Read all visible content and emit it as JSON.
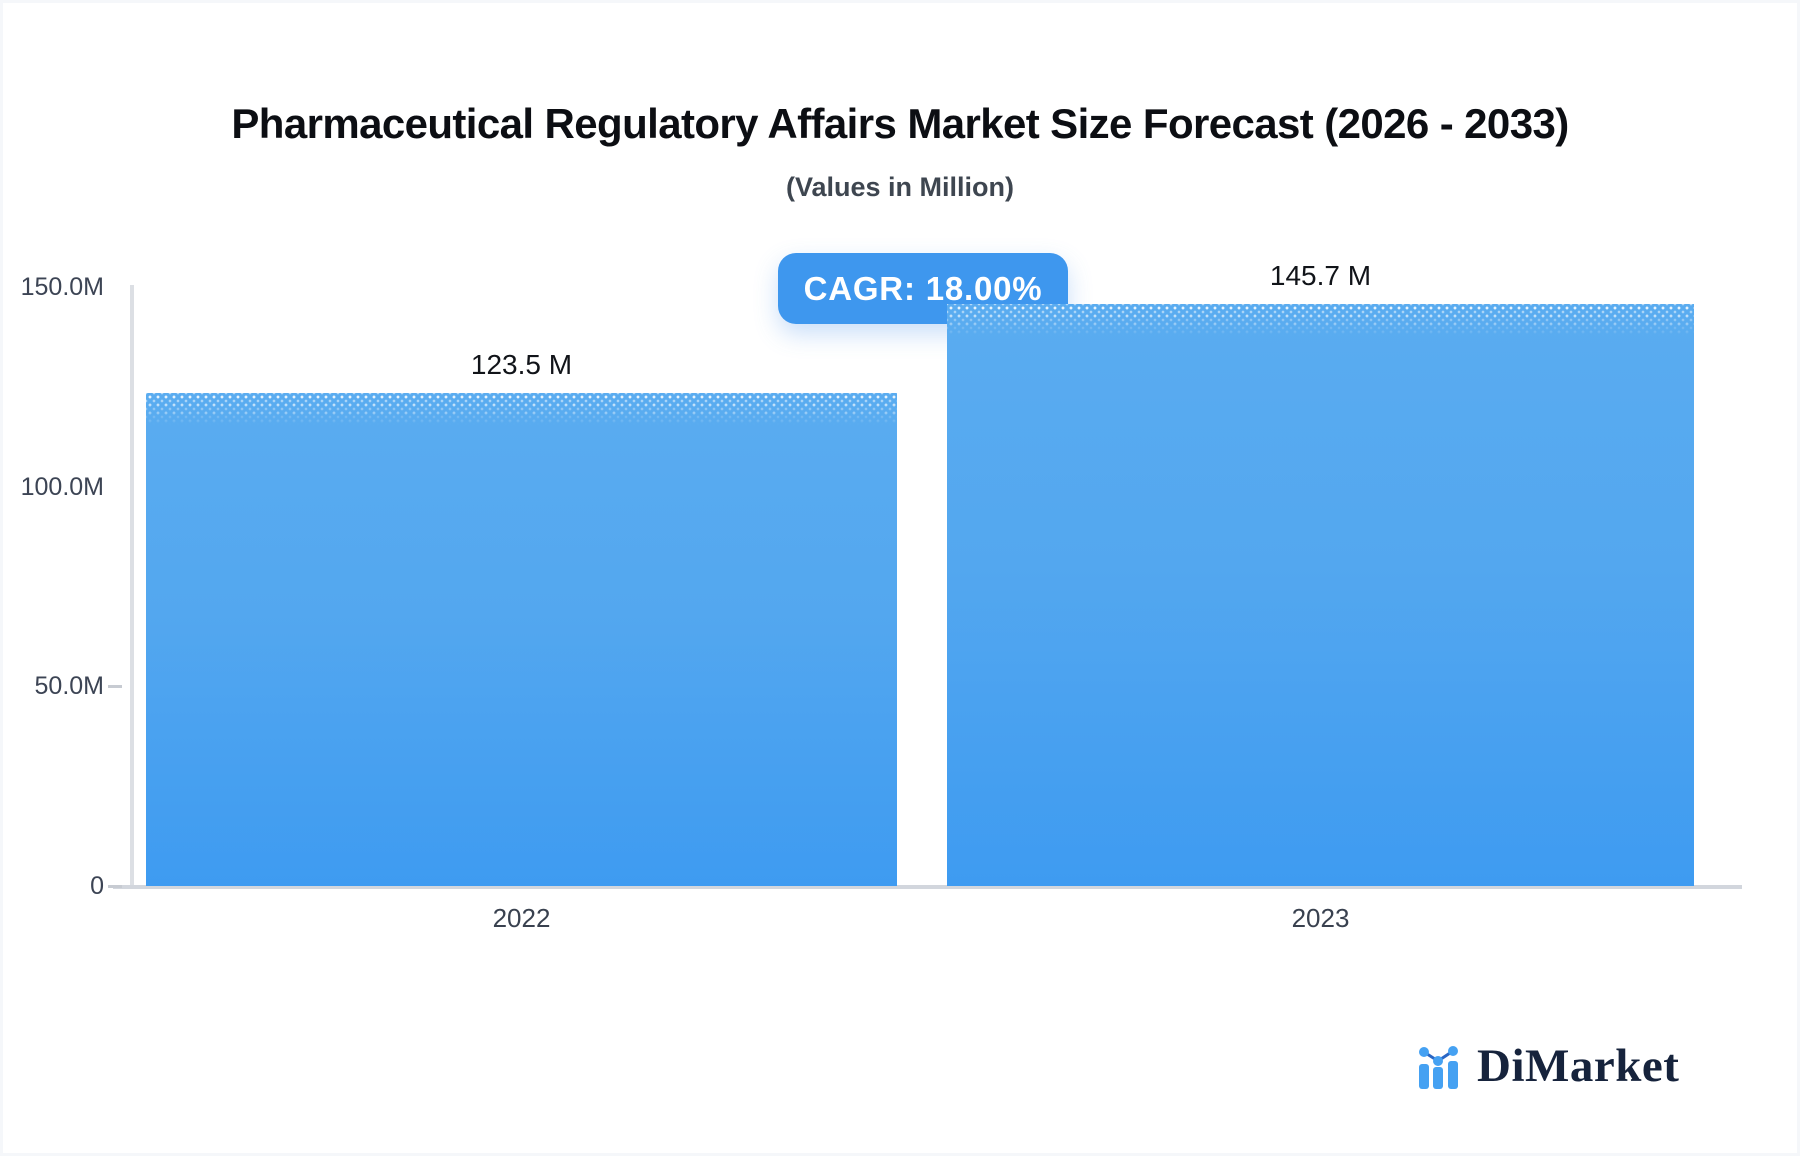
{
  "header": {
    "title": "Pharmaceutical Regulatory Affairs Market Size Forecast (2026 - 2033)",
    "subtitle": "(Values in Million)"
  },
  "badge": {
    "label": "CAGR: 18.00%"
  },
  "chart_data": {
    "type": "bar",
    "title": "Pharmaceutical Regulatory Affairs Market Size Forecast (2026 - 2033)",
    "subtitle": "(Values in Million)",
    "unit": "Million",
    "categories": [
      "2022",
      "2023"
    ],
    "values": [
      123.5,
      145.7
    ],
    "value_labels": [
      "123.5 M",
      "145.7 M"
    ],
    "cagr_percent": "18.00%",
    "ylim": [
      0,
      150
    ],
    "yticks": [
      {
        "value": 150,
        "label": "150.0M",
        "dash": false
      },
      {
        "value": 100,
        "label": "100.0M",
        "dash": false
      },
      {
        "value": 50,
        "label": "50.0M",
        "dash": true
      },
      {
        "value": 0,
        "label": "0",
        "dash": true
      }
    ],
    "grid": false,
    "legend": false,
    "bar_color_top": "#5aacf0",
    "bar_color_bottom": "#3e9bf1",
    "badge_color": "#3e97ee",
    "axis_color": "#d2d6dd"
  },
  "logo": {
    "text": "DiMarket",
    "icon": "bar-chart-logo-icon",
    "icon_bar_color": "#45a1f2",
    "icon_line_color": "#2a66c4",
    "text_color": "#16233c"
  }
}
